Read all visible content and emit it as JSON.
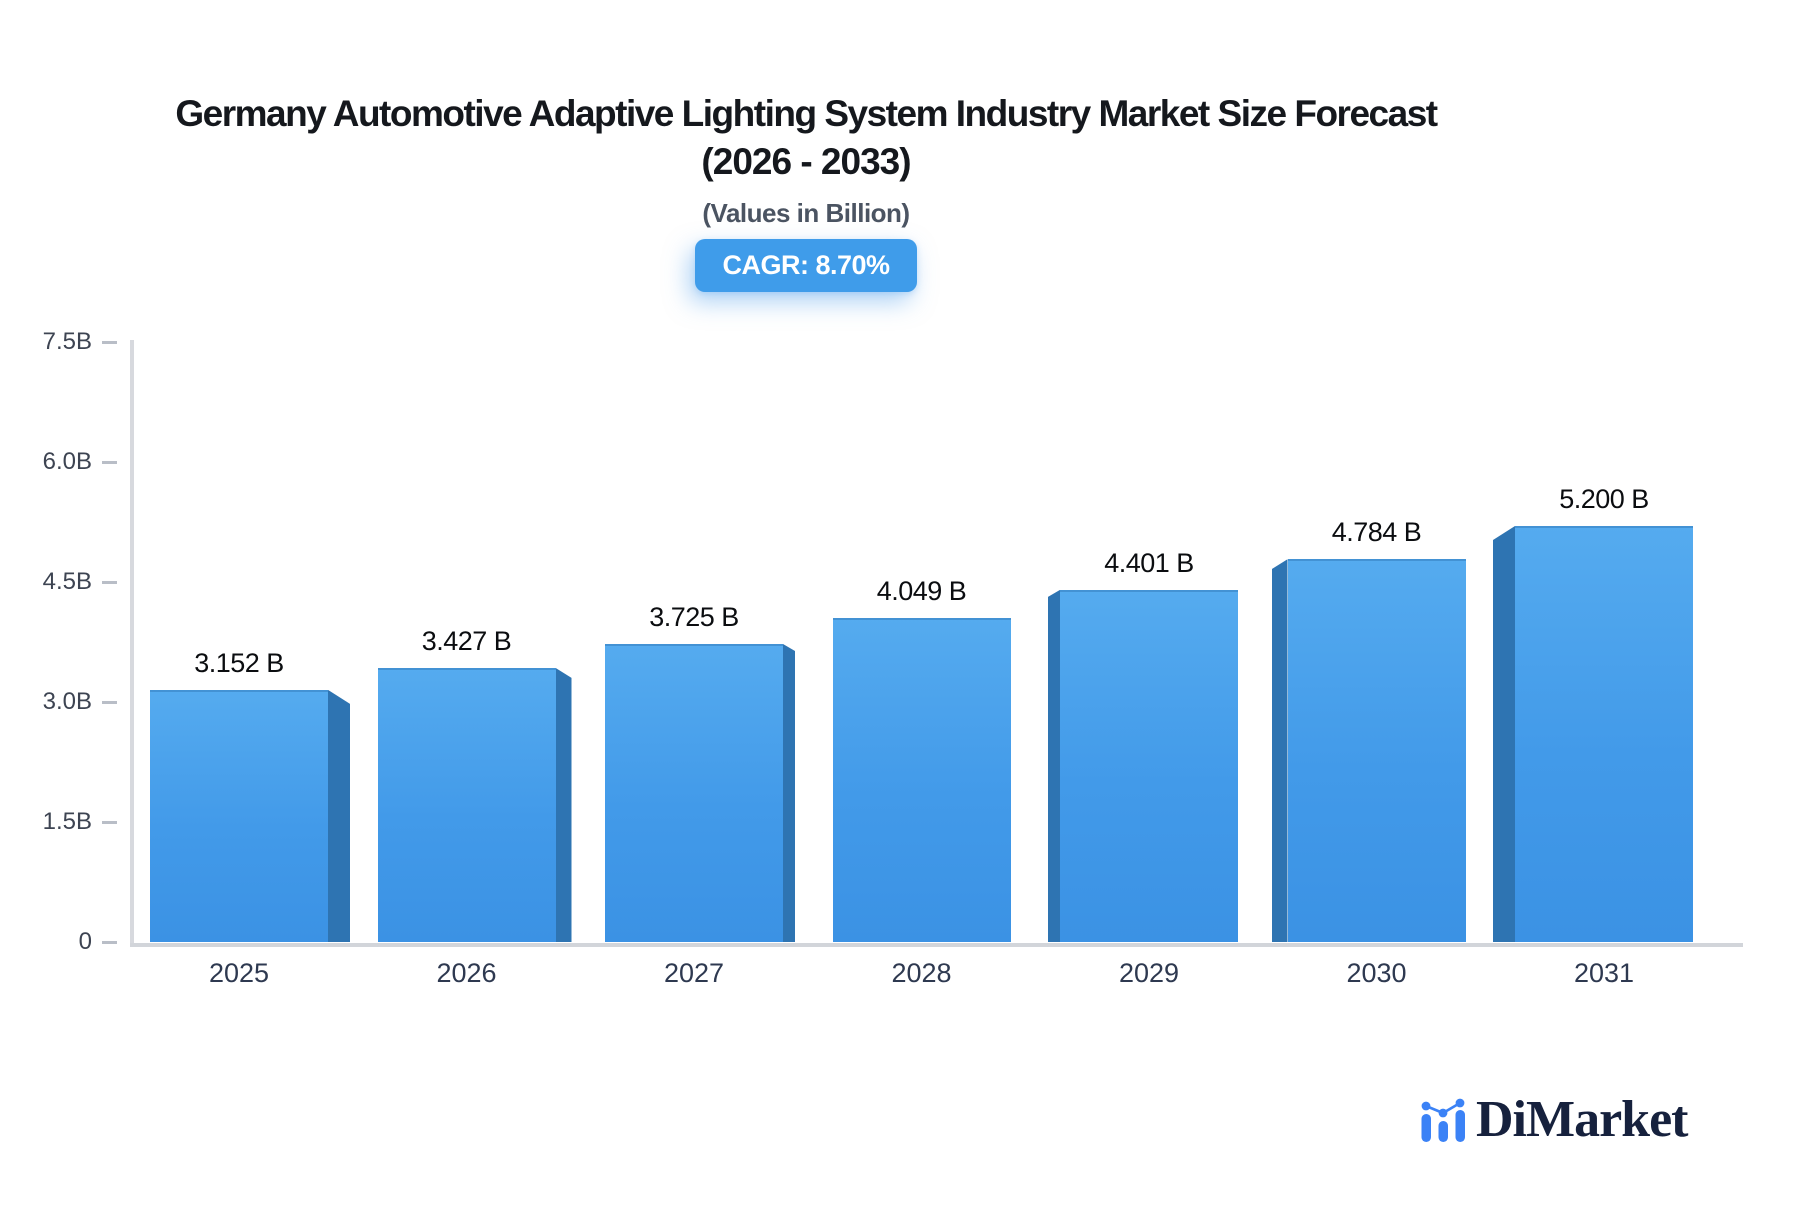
{
  "header": {
    "title_line1": "Germany Automotive Adaptive Lighting System Industry Market Size Forecast",
    "title_line2": "(2026 - 2033)",
    "subtitle": "(Values in Billion)",
    "cagr_badge": "CAGR: 8.70%"
  },
  "chart_data": {
    "type": "bar",
    "title": "Germany Automotive Adaptive Lighting System Industry Market Size Forecast (2026 - 2033)",
    "subtitle": "(Values in Billion)",
    "cagr": "8.70%",
    "categories": [
      "2025",
      "2026",
      "2027",
      "2028",
      "2029",
      "2030",
      "2031"
    ],
    "values": [
      3.152,
      3.427,
      3.725,
      4.049,
      4.401,
      4.784,
      5.2
    ],
    "value_labels": [
      "3.152 B",
      "3.427 B",
      "3.725 B",
      "4.049 B",
      "4.401 B",
      "4.784 B",
      "5.200 B"
    ],
    "y_ticks": [
      "7.5B",
      "6.0B",
      "4.5B",
      "3.0B",
      "1.5B",
      "0"
    ],
    "y_tick_values": [
      7.5,
      6.0,
      4.5,
      3.0,
      1.5,
      0
    ],
    "ylim": [
      0,
      7.5
    ],
    "xlabel": "",
    "ylabel": "",
    "grid": false,
    "legend_position": "none",
    "style": "3d-perspective-bars"
  },
  "branding": {
    "logo_text": "DiMarket",
    "logo_icon": "mini-bar-chart-icon"
  },
  "colors": {
    "bar_face_top": "#55ABEF",
    "bar_face_bottom": "#3B92E4",
    "bar_side": "#2E74B2",
    "badge_bg": "#3F9CEA",
    "badge_text": "#FFFFFF",
    "axis_line": "#D7D9DE",
    "tick_dash": "#B9BEC7",
    "title_text": "#15181D",
    "subtitle_text": "#4B5462",
    "value_label_text": "#0B0D10",
    "x_tick_text": "#2E3950",
    "y_tick_text": "#3D4452",
    "logo_blue": "#3B82F6",
    "logo_navy": "#16213D"
  }
}
